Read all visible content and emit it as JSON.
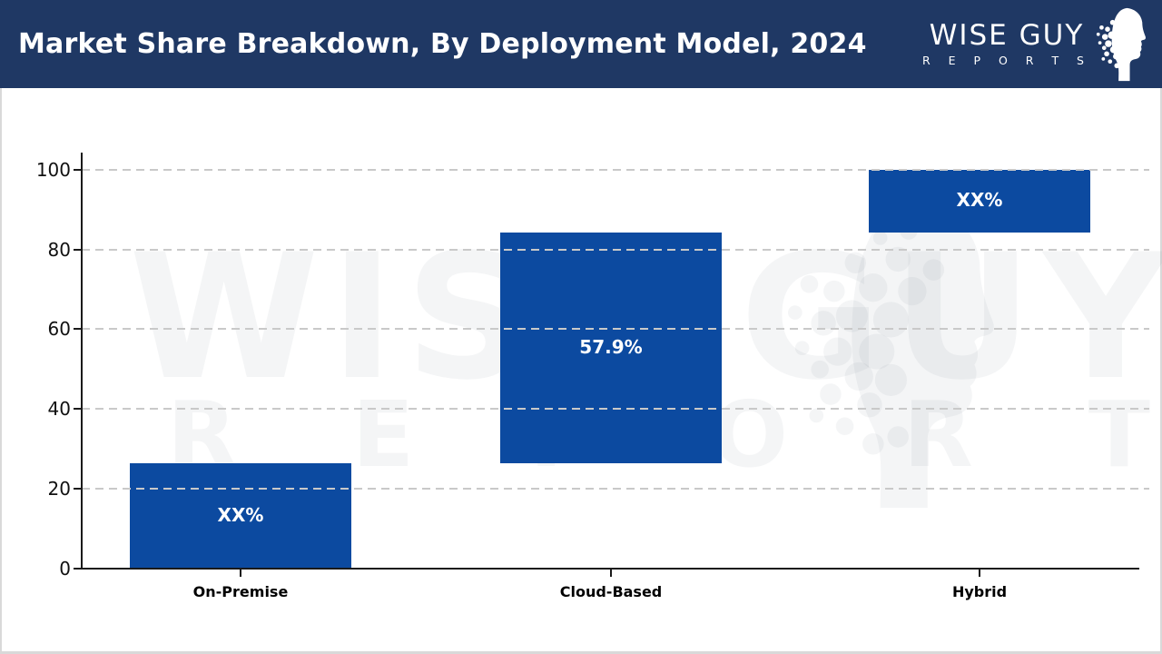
{
  "header": {
    "title": "Market Share Breakdown, By Deployment Model, 2024",
    "logo": {
      "name": "WISE GUY REPORTS",
      "line1": "WISE GUY",
      "line2": "R E P O R T S"
    }
  },
  "watermark": {
    "line1": "WISE GUY",
    "line2": "R E P O R T S"
  },
  "colors": {
    "header_bg": "#1f3864",
    "bar": "#0c4aa0",
    "bar_label": "#ffffff",
    "axis": "#1a1a1a",
    "grid": "#c9c9c9",
    "tick_label": "#111111",
    "border": "#d9d9d9"
  },
  "chart_data": {
    "type": "bar",
    "subtype": "waterfall-breakdown",
    "title": "Market Share Breakdown, By Deployment Model, 2024",
    "categories": [
      "On-Premise",
      "Cloud-Based",
      "Hybrid"
    ],
    "segments": [
      {
        "category": "On-Premise",
        "start": 0,
        "end": 26.3,
        "label": "XX%"
      },
      {
        "category": "Cloud-Based",
        "start": 26.3,
        "end": 84.2,
        "label": "57.9%",
        "value": 57.9
      },
      {
        "category": "Hybrid",
        "start": 84.2,
        "end": 100,
        "label": "XX%"
      }
    ],
    "yticks": [
      0,
      20,
      40,
      60,
      80,
      100
    ],
    "ylim": [
      0,
      104
    ],
    "xlabel": "",
    "ylabel": "",
    "grid": "horizontal-dashed",
    "legend": "none"
  }
}
